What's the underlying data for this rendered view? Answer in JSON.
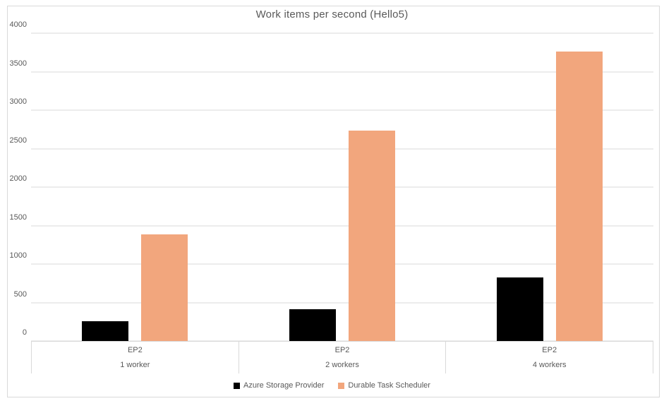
{
  "title": "Work items per second (Hello5)",
  "colors": {
    "series_azure_storage": "#000000",
    "series_durable_task_scheduler": "#F2A67D",
    "gridline": "#D9D9D9",
    "text": "#595959",
    "frame_border": "#D9D9D9",
    "background": "#FFFFFF"
  },
  "chart_data": {
    "type": "bar",
    "title": "Work items per second (Hello5)",
    "xlabel": "",
    "ylabel": "",
    "grid": true,
    "legend_position": "bottom",
    "y_axis": {
      "min": 0,
      "max": 4000,
      "step": 500,
      "ticks": [
        0,
        500,
        1000,
        1500,
        2000,
        2500,
        3000,
        3500,
        4000
      ]
    },
    "categories": [
      {
        "top": "EP2",
        "bottom": "1 worker"
      },
      {
        "top": "EP2",
        "bottom": "2 workers"
      },
      {
        "top": "EP2",
        "bottom": "4 workers"
      }
    ],
    "series": [
      {
        "name": "Azure Storage Provider",
        "color": "#000000",
        "values": [
          260,
          415,
          830
        ]
      },
      {
        "name": "Durable Task Scheduler",
        "color": "#F2A67D",
        "values": [
          1390,
          2730,
          3760
        ]
      }
    ]
  }
}
